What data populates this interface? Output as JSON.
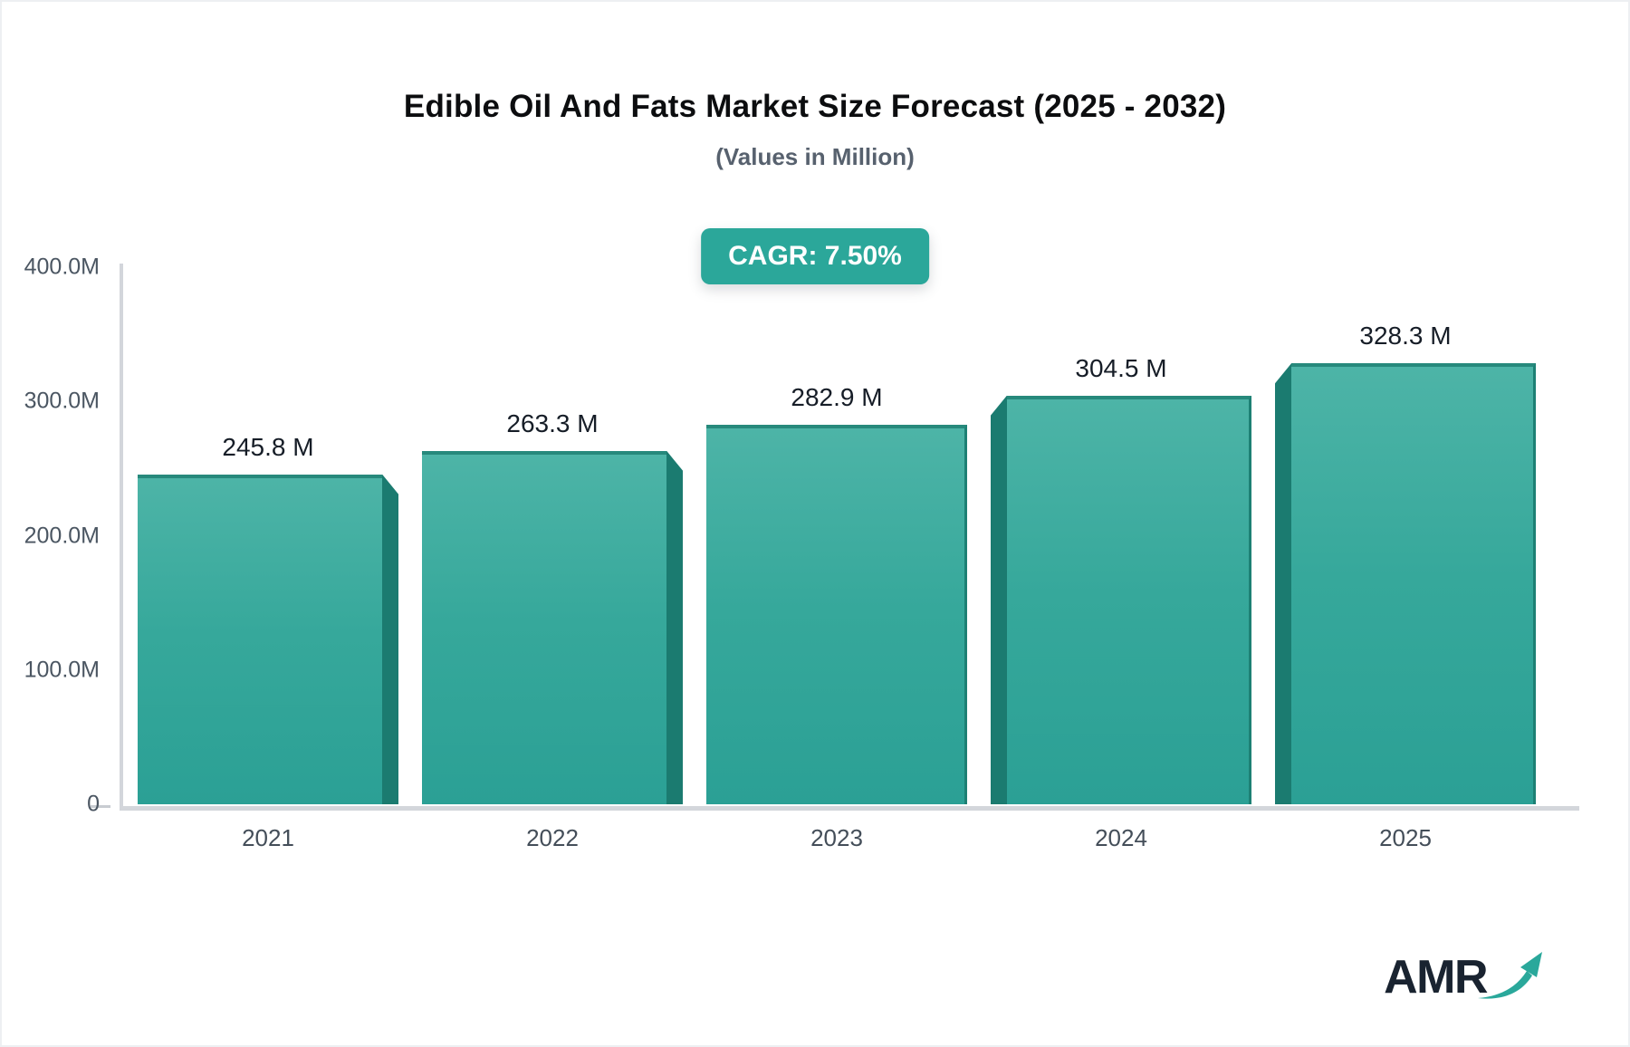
{
  "title": "Edible Oil And Fats Market Size Forecast (2025 - 2032)",
  "subtitle": "(Values in Million)",
  "badge": {
    "label": "CAGR: 7.50%"
  },
  "logo": {
    "text": "AMR"
  },
  "colors": {
    "bar_teal": "#36a89b",
    "bar_side_dark": "#1b7b70",
    "badge_teal": "#2ba79a",
    "axis_gray": "#d3d6db",
    "logo_navy": "#192330",
    "logo_arrow_teal": "#2aa89b"
  },
  "chart_data": {
    "type": "bar",
    "categories": [
      "2021",
      "2022",
      "2023",
      "2024",
      "2025"
    ],
    "values": [
      245.8,
      263.3,
      282.9,
      304.5,
      328.3
    ],
    "value_labels": [
      "245.8 M",
      "263.3 M",
      "282.9 M",
      "304.5 M",
      "328.3 M"
    ],
    "title": "Edible Oil And Fats Market Size Forecast (2025 - 2032)",
    "subtitle": "(Values in Million)",
    "cagr": "7.50%",
    "xlabel": "",
    "ylabel": "",
    "unit": "Million",
    "ylim": [
      0,
      400
    ],
    "yticks": [
      "400.0M",
      "300.0M",
      "200.0M",
      "100.0M",
      "0"
    ],
    "ytick_values": [
      400,
      300,
      200,
      100,
      0
    ],
    "grid": false,
    "legend": false,
    "bar_side_3d": [
      "right",
      "right",
      "none",
      "left",
      "left"
    ]
  }
}
